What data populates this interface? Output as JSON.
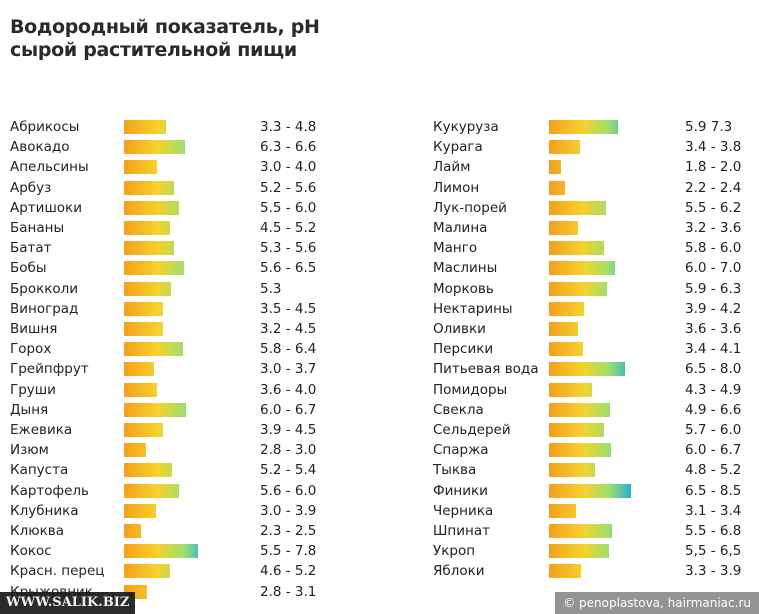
{
  "title_lines": [
    "Водородный показатель, рН",
    "сырой растительной пищи"
  ],
  "watermarks": {
    "left": "WWW.SALIK.BIZ",
    "right": "© penoplastova, hairmaniac.ru"
  },
  "colors": {
    "gradient": [
      "#f2a01f",
      "#f6d22a",
      "#9fe06e",
      "#1aa7dc"
    ]
  },
  "chart_data": {
    "type": "bar",
    "title": "Водородный показатель, рН сырой растительной пищи",
    "xlabel": "",
    "ylabel": "",
    "grid": false,
    "bar_scale_note": "bar length proportional to upper pH value",
    "columns": [
      {
        "items": [
          {
            "name": "Абрикосы",
            "label": "3.3 - 4.8",
            "min": 3.3,
            "max": 4.8
          },
          {
            "name": "Авокадо",
            "label": "6.3 - 6.6",
            "min": 6.3,
            "max": 6.6
          },
          {
            "name": "Апельсины",
            "label": "3.0 - 4.0",
            "min": 3.0,
            "max": 4.0
          },
          {
            "name": "Арбуз",
            "label": "5.2 - 5.6",
            "min": 5.2,
            "max": 5.6
          },
          {
            "name": "Артишоки",
            "label": "5.5 - 6.0",
            "min": 5.5,
            "max": 6.0
          },
          {
            "name": "Бананы",
            "label": "4.5 - 5.2",
            "min": 4.5,
            "max": 5.2
          },
          {
            "name": "Батат",
            "label": "5.3 - 5.6",
            "min": 5.3,
            "max": 5.6
          },
          {
            "name": "Бобы",
            "label": "5.6 - 6.5",
            "min": 5.6,
            "max": 6.5
          },
          {
            "name": "Брокколи",
            "label": "5.3",
            "min": 5.3,
            "max": 5.3
          },
          {
            "name": "Виноград",
            "label": "3.5 - 4.5",
            "min": 3.5,
            "max": 4.5
          },
          {
            "name": "Вишня",
            "label": "3.2 - 4.5",
            "min": 3.2,
            "max": 4.5
          },
          {
            "name": "Горох",
            "label": "5.8 - 6.4",
            "min": 5.8,
            "max": 6.4
          },
          {
            "name": "Грейпфрут",
            "label": "3.0 - 3.7",
            "min": 3.0,
            "max": 3.7
          },
          {
            "name": "Груши",
            "label": "3.6 - 4.0",
            "min": 3.6,
            "max": 4.0
          },
          {
            "name": "Дыня",
            "label": "6.0 - 6.7",
            "min": 6.0,
            "max": 6.7
          },
          {
            "name": "Ежевика",
            "label": "3.9 - 4.5",
            "min": 3.9,
            "max": 4.5
          },
          {
            "name": "Изюм",
            "label": "2.8 - 3.0",
            "min": 2.8,
            "max": 3.0
          },
          {
            "name": "Капуста",
            "label": "5.2 - 5.4",
            "min": 5.2,
            "max": 5.4
          },
          {
            "name": "Картофель",
            "label": "5.6 - 6.0",
            "min": 5.6,
            "max": 6.0
          },
          {
            "name": "Клубника",
            "label": "3.0 - 3.9",
            "min": 3.0,
            "max": 3.9
          },
          {
            "name": "Клюква",
            "label": "2.3 - 2.5",
            "min": 2.3,
            "max": 2.5
          },
          {
            "name": "Кокос",
            "label": "5.5 - 7.8",
            "min": 5.5,
            "max": 7.8
          },
          {
            "name": "Красн. перец",
            "label": "4.6 - 5.2",
            "min": 4.6,
            "max": 5.2
          },
          {
            "name": "Крыжовник",
            "label": "2.8 - 3.1",
            "min": 2.8,
            "max": 3.1
          }
        ]
      },
      {
        "items": [
          {
            "name": "Кукуруза",
            "label": "5.9 7.3",
            "min": 5.9,
            "max": 7.3
          },
          {
            "name": "Курага",
            "label": "3.4 - 3.8",
            "min": 3.4,
            "max": 3.8
          },
          {
            "name": "Лайм",
            "label": "1.8 - 2.0",
            "min": 1.8,
            "max": 2.0
          },
          {
            "name": "Лимон",
            "label": "2.2 - 2.4",
            "min": 2.2,
            "max": 2.4
          },
          {
            "name": "Лук-порей",
            "label": "5.5 - 6.2",
            "min": 5.5,
            "max": 6.2
          },
          {
            "name": "Малина",
            "label": "3.2 - 3.6",
            "min": 3.2,
            "max": 3.6
          },
          {
            "name": "Манго",
            "label": "5.8 - 6.0",
            "min": 5.8,
            "max": 6.0
          },
          {
            "name": "Маслины",
            "label": "6.0 - 7.0",
            "min": 6.0,
            "max": 7.0
          },
          {
            "name": "Морковь",
            "label": "5.9 - 6.3",
            "min": 5.9,
            "max": 6.3
          },
          {
            "name": "Нектарины",
            "label": "3.9 - 4.2",
            "min": 3.9,
            "max": 4.2
          },
          {
            "name": "Оливки",
            "label": "3.6 - 3.6",
            "min": 3.6,
            "max": 3.6
          },
          {
            "name": "Персики",
            "label": "3.4 - 4.1",
            "min": 3.4,
            "max": 4.1
          },
          {
            "name": "Питьевая вода",
            "label": "6.5 - 8.0",
            "min": 6.5,
            "max": 8.0
          },
          {
            "name": "Помидоры",
            "label": "4.3 - 4.9",
            "min": 4.3,
            "max": 4.9
          },
          {
            "name": "Свекла",
            "label": "4.9 - 6.6",
            "min": 4.9,
            "max": 6.6
          },
          {
            "name": "Сельдерей",
            "label": "5.7 - 6.0",
            "min": 5.7,
            "max": 6.0
          },
          {
            "name": "Спаржа",
            "label": "6.0 - 6.7",
            "min": 6.0,
            "max": 6.7
          },
          {
            "name": "Тыква",
            "label": "4.8 - 5.2",
            "min": 4.8,
            "max": 5.2
          },
          {
            "name": "Финики",
            "label": "6.5 - 8.5",
            "min": 6.5,
            "max": 8.5
          },
          {
            "name": "Черника",
            "label": "3.1 - 3.4",
            "min": 3.1,
            "max": 3.4
          },
          {
            "name": "Шпинат",
            "label": "5.5 - 6.8",
            "min": 5.5,
            "max": 6.8
          },
          {
            "name": "Укроп",
            "label": "5,5 - 6,5",
            "min": 5.5,
            "max": 6.5
          },
          {
            "name": "Яблоки",
            "label": "3.3 - 3.9",
            "min": 3.3,
            "max": 3.9
          }
        ]
      }
    ]
  }
}
